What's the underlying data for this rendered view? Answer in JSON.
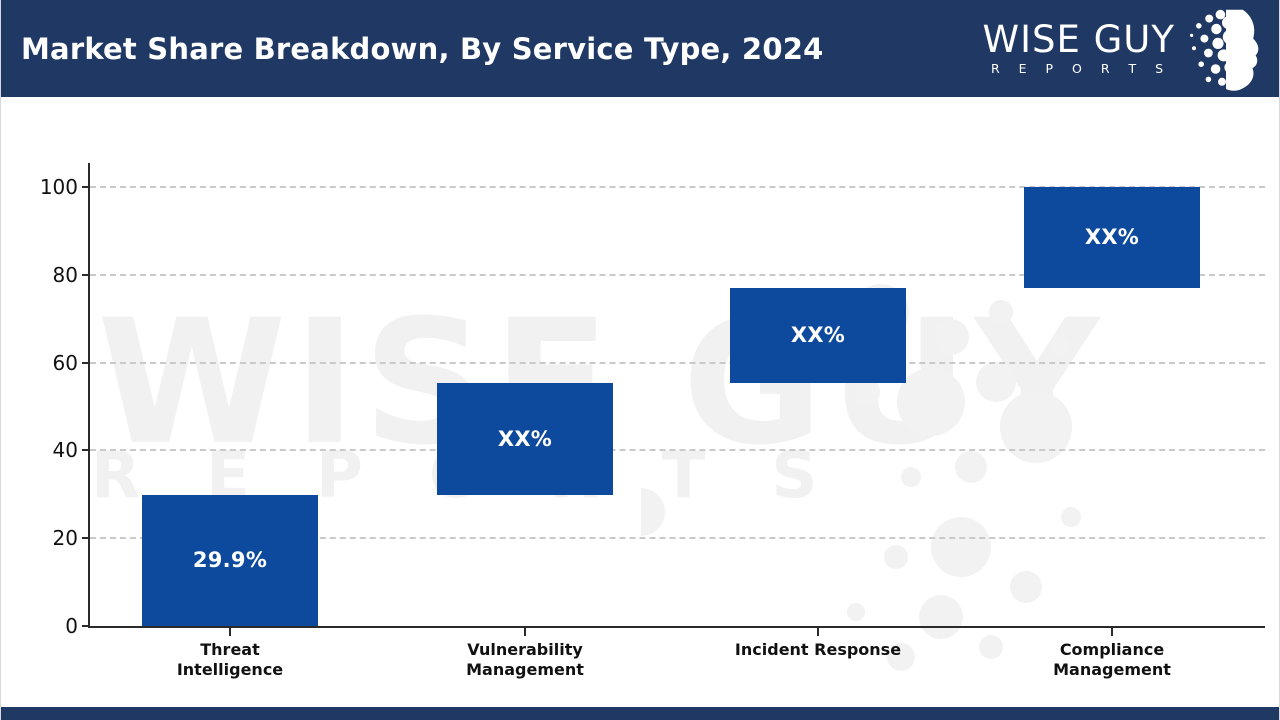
{
  "header": {
    "title": "Market Share Breakdown, By Service Type, 2024",
    "background_color": "#203864",
    "logo": {
      "wordmark": "WISE GUY",
      "subtitle": "R E P O R T S"
    }
  },
  "watermark": {
    "line1": "WISE GUY",
    "line2": "REPORTS"
  },
  "chart_data": {
    "type": "bar",
    "subtype": "waterfall",
    "title": "Market Share Breakdown, By Service Type, 2024",
    "xlabel": "",
    "ylabel": "",
    "categories": [
      "Threat Intelligence",
      "Vulnerability Management",
      "Incident Response",
      "Compliance Management"
    ],
    "category_label_lines": [
      [
        "Threat",
        "Intelligence"
      ],
      [
        "Vulnerability",
        "Management"
      ],
      [
        "Incident Response"
      ],
      [
        "Compliance",
        "Management"
      ]
    ],
    "segments": [
      {
        "category": "Threat Intelligence",
        "start": 0,
        "end": 29.9,
        "label": "29.9%"
      },
      {
        "category": "Vulnerability Management",
        "start": 29.9,
        "end": 55.4,
        "label": "XX%"
      },
      {
        "category": "Incident Response",
        "start": 55.4,
        "end": 77.0,
        "label": "XX%"
      },
      {
        "category": "Compliance Management",
        "start": 77.0,
        "end": 100.0,
        "label": "XX%"
      }
    ],
    "yticks": [
      0,
      20,
      40,
      60,
      80,
      100
    ],
    "ylim": [
      0,
      105
    ],
    "grid": "horizontal dashed",
    "legend": "none",
    "bar_color": "#0d4a9e",
    "bar_label_color": "#ffffff",
    "grid_color": "#c9c9c9",
    "axis_color": "#2b2b2b"
  }
}
